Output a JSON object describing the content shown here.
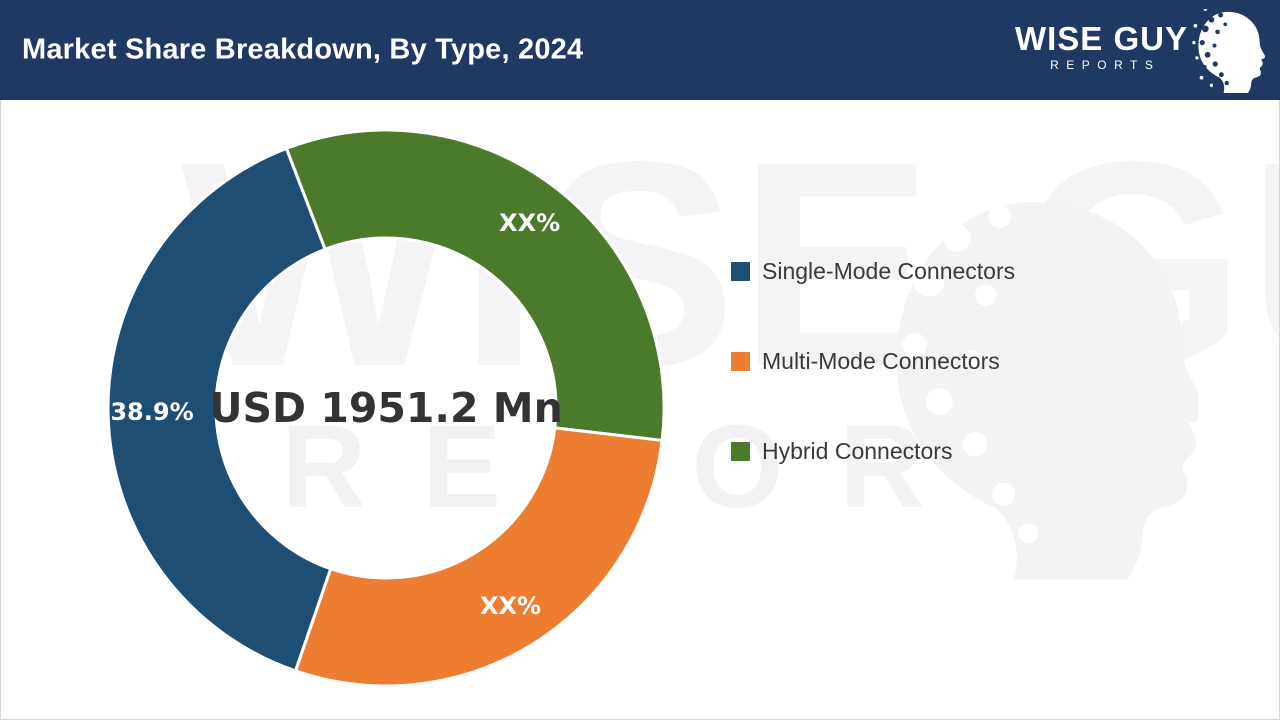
{
  "header": {
    "title": "Market Share Breakdown, By Type, 2024",
    "bg_color": "#1F3864",
    "logo": {
      "name": "WISE GUY",
      "sub": "REPORTS"
    }
  },
  "watermark": {
    "line1": "WISE GUY",
    "line2": "REPORTS"
  },
  "chart_data": {
    "type": "pie",
    "subtype": "donut",
    "title": "Market Share Breakdown, By Type, 2024",
    "center_label": "USD 1951.2 Mn",
    "total_value_display": "USD 1951.2 Mn",
    "units": "USD Mn",
    "start_angle_deg": -21,
    "legend_position": "right",
    "slices": [
      {
        "name": "Hybrid Connectors",
        "display_label": "XX%",
        "value_pct": null,
        "value_pct_estimated": 32.7,
        "sweep_deg": 117.7,
        "color": "#4B7A2B"
      },
      {
        "name": "Multi-Mode Connectors",
        "display_label": "XX%",
        "value_pct": null,
        "value_pct_estimated": 28.4,
        "sweep_deg": 102.3,
        "color": "#ED7D31"
      },
      {
        "name": "Single-Mode Connectors",
        "display_label": "38.9%",
        "value_pct": 38.9,
        "value_pct_estimated": 38.9,
        "sweep_deg": 140.0,
        "color": "#1F4E74"
      }
    ],
    "legend": [
      {
        "label": "Single-Mode Connectors",
        "color": "#1F4E74"
      },
      {
        "label": "Multi-Mode Connectors",
        "color": "#ED7D31"
      },
      {
        "label": "Hybrid Connectors",
        "color": "#4B7A2B"
      }
    ]
  }
}
